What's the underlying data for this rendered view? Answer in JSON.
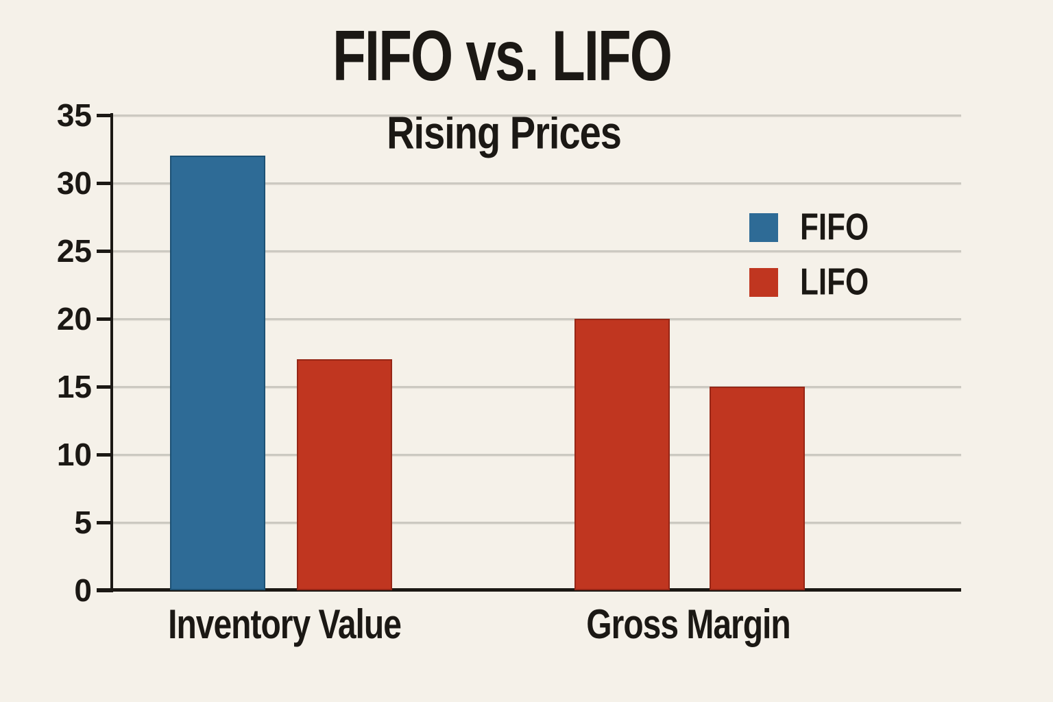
{
  "page": {
    "background_color": "#f5f1e9",
    "text_color": "#1b1814",
    "gridline_color": "#ccc9c1"
  },
  "chart_data": {
    "type": "bar",
    "title": "FIFO vs. LIFO",
    "subtitle": "Rising Prices",
    "categories": [
      "Inventory Value",
      "Gross Margin"
    ],
    "series": [
      {
        "name": "FIFO",
        "color": "#2e6b96",
        "border_color": "#1d5174",
        "values": [
          32,
          20
        ]
      },
      {
        "name": "LIFO",
        "color": "#c03620",
        "border_color": "#962616",
        "values": [
          17,
          15
        ]
      }
    ],
    "rendered_bars": [
      {
        "category": "Inventory Value",
        "bars": [
          {
            "series": "FIFO",
            "value": 32,
            "fill_like": "FIFO"
          },
          {
            "series": "LIFO",
            "value": 17,
            "fill_like": "LIFO"
          }
        ]
      },
      {
        "category": "Gross Margin",
        "bars": [
          {
            "series": "FIFO",
            "value": 20,
            "fill_like": "LIFO"
          },
          {
            "series": "LIFO",
            "value": 15,
            "fill_like": "LIFO"
          }
        ]
      }
    ],
    "visual_note": "Both bars in the Gross Margin group are painted in the LIFO red color",
    "ylim": [
      0,
      35
    ],
    "yticks": [
      0,
      5,
      10,
      15,
      20,
      25,
      30,
      35
    ],
    "grid": true,
    "legend": {
      "position": "upper right",
      "entries": [
        "FIFO",
        "LIFO"
      ]
    },
    "xlabel": "",
    "ylabel": ""
  }
}
